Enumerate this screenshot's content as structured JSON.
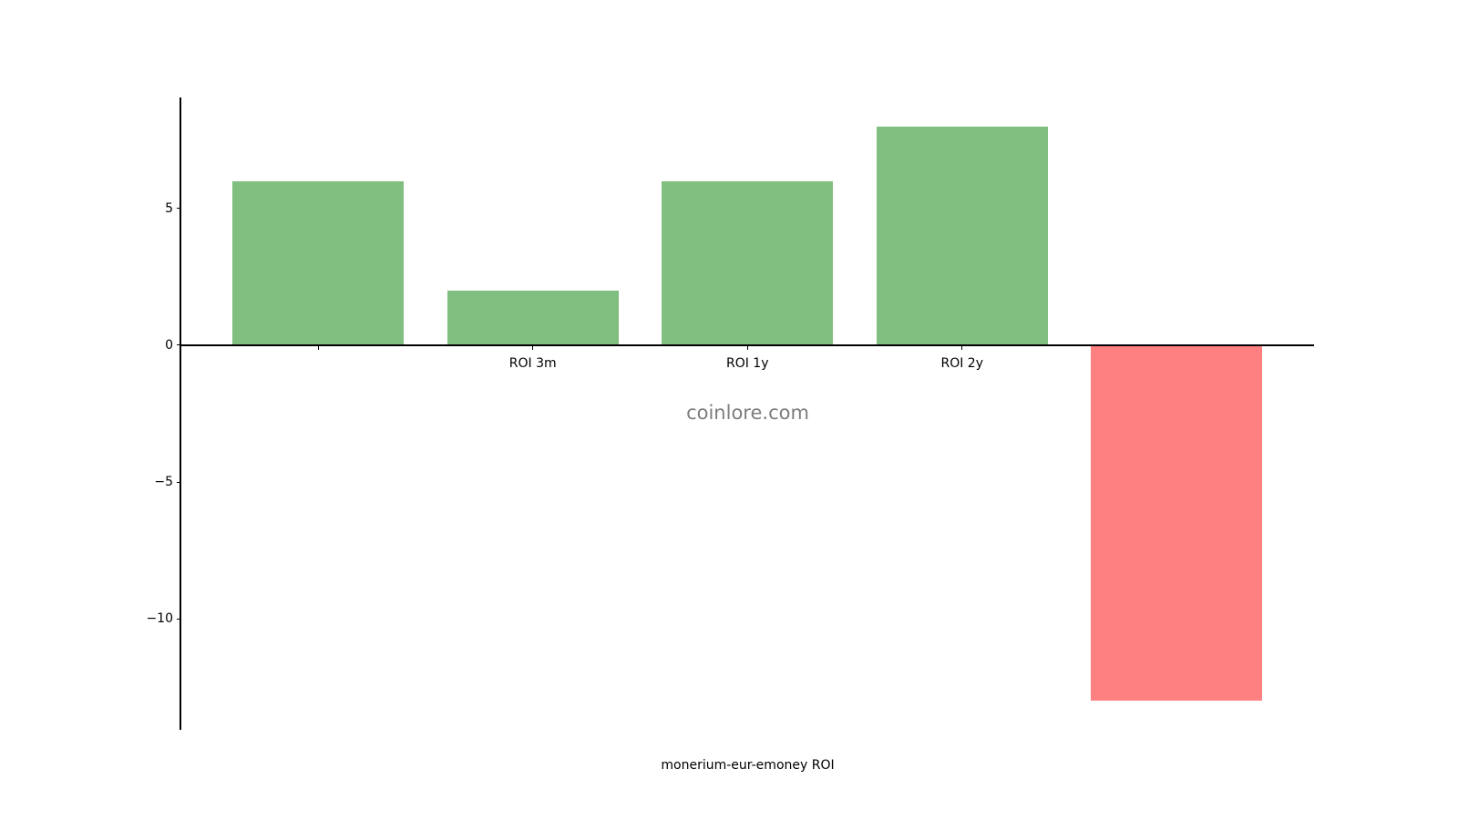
{
  "chart_data": {
    "type": "bar",
    "title": "monerium-eur-emoney ROI",
    "watermark": "coinlore.com",
    "categories": [
      "",
      "ROI 3m",
      "ROI 1y",
      "ROI 2y",
      ""
    ],
    "values": [
      6,
      2,
      6,
      8,
      -13
    ],
    "bar_colors": [
      "#80bf80",
      "#80bf80",
      "#80bf80",
      "#80bf80",
      "#ff8080"
    ],
    "positive_color": "#80bf80",
    "negative_color": "#ff8080",
    "yticks": [
      {
        "value": 5,
        "label": "5"
      },
      {
        "value": 0,
        "label": "0"
      },
      {
        "value": -5,
        "label": "−5"
      },
      {
        "value": -10,
        "label": "−10"
      }
    ],
    "ylim": [
      -14.05,
      9.05
    ],
    "xlim": [
      -0.64,
      4.64
    ],
    "bar_width": 0.8,
    "grid": false,
    "legend": null,
    "axis_color": "#000000",
    "text_color": "#000000",
    "watermark_color": "#7d7d7d",
    "background_color": "#ffffff"
  }
}
